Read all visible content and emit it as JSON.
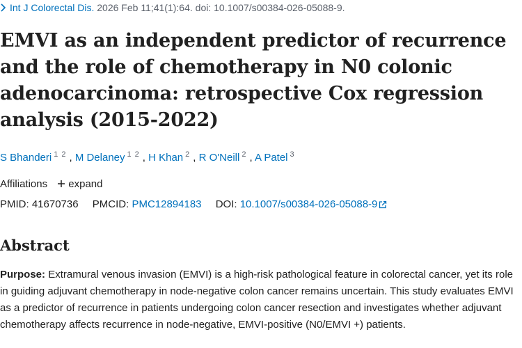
{
  "citation": {
    "journal": "Int J Colorectal Dis.",
    "details": "2026 Feb 11;41(1):64. doi: 10.1007/s00384-026-05088-9."
  },
  "title": "EMVI as an independent predictor of recurrence and the role of chemotherapy in N0 colonic adenocarcinoma: retrospective Cox regression analysis (2015-2022)",
  "authors": {
    "separator": ",",
    "list": [
      {
        "name": "S Bhanderi",
        "affiliations": [
          "1",
          "2"
        ]
      },
      {
        "name": "M Delaney",
        "affiliations": [
          "1",
          "2"
        ]
      },
      {
        "name": "H Khan",
        "affiliations": [
          "2"
        ]
      },
      {
        "name": "R O'Neill",
        "affiliations": [
          "2"
        ]
      },
      {
        "name": "A Patel",
        "affiliations": [
          "3"
        ]
      }
    ]
  },
  "affiliations": {
    "label": "Affiliations",
    "toggle": "expand"
  },
  "identifiers": {
    "pmid_label": "PMID:",
    "pmid": "41670736",
    "pmcid_label": "PMCID:",
    "pmcid": "PMC12894183",
    "doi_label": "DOI:",
    "doi": "10.1007/s00384-026-05088-9"
  },
  "abstract": {
    "heading": "Abstract",
    "purpose_label": "Purpose:",
    "purpose_text": "Extramural venous invasion (EMVI) is a high-risk pathological feature in colorectal cancer, yet its role in guiding adjuvant chemotherapy in node-negative colon cancer remains uncertain. This study evaluates EMVI as a predictor of recurrence in patients undergoing colon cancer resection and investigates whether adjuvant chemotherapy affects recurrence in node-negative, EMVI-positive (N0/EMVI +) patients."
  }
}
